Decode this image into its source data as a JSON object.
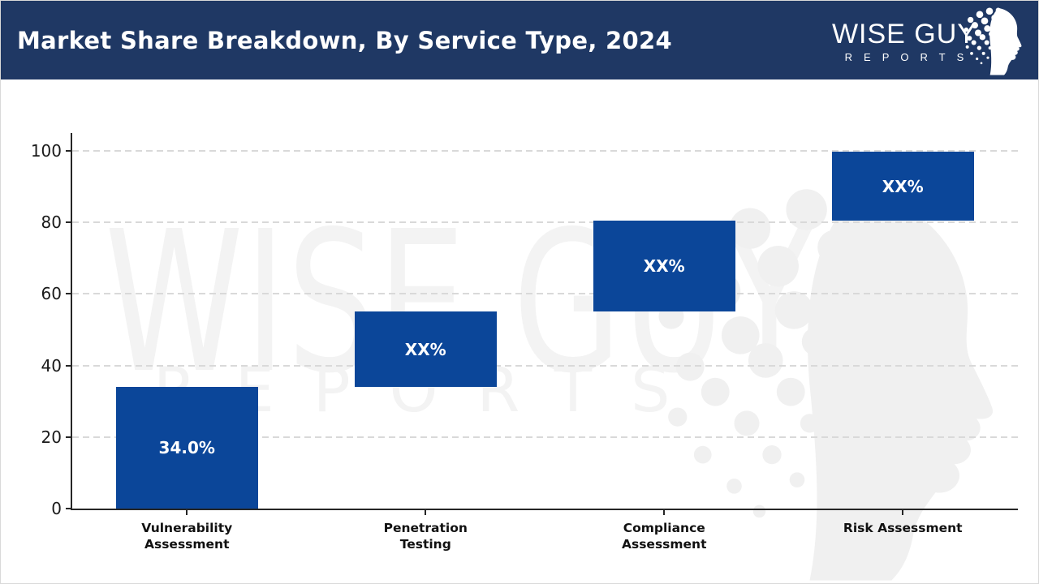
{
  "header": {
    "title": "Market Share Breakdown, By Service Type, 2024",
    "logo": {
      "line1": "WISE GUY",
      "line2": "REPORTS"
    }
  },
  "watermark": {
    "line1": "WISE GUY",
    "line2": "REPORTS"
  },
  "colors": {
    "header_bg": "#1f3864",
    "bar": "#0b4699",
    "grid": "#d9d9d9",
    "axis": "#262626",
    "watermark": "#f2f2f2",
    "page_border": "#d9d9d9",
    "title_text": "#ffffff",
    "bar_label_text": "#ffffff"
  },
  "chart_data": {
    "type": "bar",
    "subtype": "waterfall",
    "title": "Market Share Breakdown, By Service Type, 2024",
    "xlabel": "",
    "ylabel": "",
    "categories": [
      "Vulnerability Assessment",
      "Penetration Testing",
      "Compliance Assessment",
      "Risk Assessment"
    ],
    "category_label_lines": [
      [
        "Vulnerability",
        "Assessment"
      ],
      [
        "Penetration",
        "Testing"
      ],
      [
        "Compliance",
        "Assessment"
      ],
      [
        "Risk Assessment"
      ]
    ],
    "segments": [
      {
        "category": "Vulnerability Assessment",
        "start": 0,
        "end": 34,
        "label": "34.0%"
      },
      {
        "category": "Penetration Testing",
        "start": 34,
        "end": 55,
        "label": "XX%"
      },
      {
        "category": "Compliance Assessment",
        "start": 55,
        "end": 80.4,
        "label": "XX%"
      },
      {
        "category": "Risk Assessment",
        "start": 80.4,
        "end": 99.7,
        "label": "XX%"
      }
    ],
    "yticks": [
      0,
      20,
      40,
      60,
      80,
      100
    ],
    "ylim": [
      0,
      105
    ],
    "grid": "horizontal-dashed",
    "legend": "none",
    "bar_color": "#0b4699"
  }
}
